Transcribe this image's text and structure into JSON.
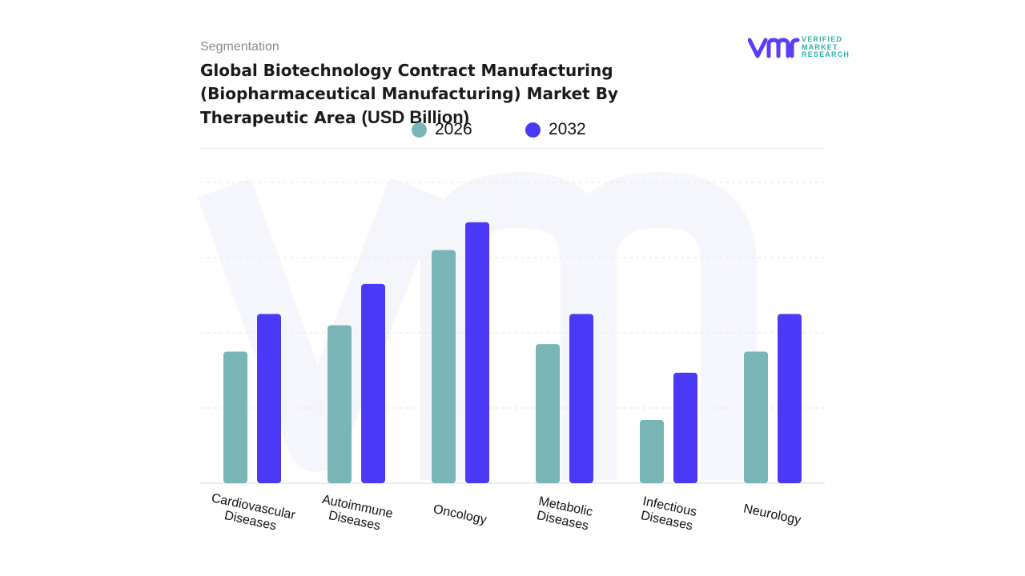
{
  "header": {
    "eyebrow": "Segmentation",
    "title_main": "Global Biotechnology Contract Manufacturing (Biopharmaceutical Manufacturing) Market By Therapeutic Area",
    "title_unit": "(USD Billion)"
  },
  "brand": {
    "logo_line1": "VERIFIED",
    "logo_line2": "MARKET",
    "logo_line3": "RESEARCH",
    "logo_color": "#5b3df5",
    "text_color": "#29b0a8"
  },
  "colors": {
    "series_2026": "#79b4b7",
    "series_2032": "#4a3af5",
    "grid": "#e6e6e6"
  },
  "chart_data": {
    "type": "bar",
    "categories": [
      "Cardiovascular Diseases",
      "Autoimmune Diseases",
      "Oncology",
      "Metabolic Diseases",
      "Infectious Diseases",
      "Neurology"
    ],
    "series": [
      {
        "name": "2026",
        "values": [
          17.5,
          21.0,
          31.0,
          18.5,
          8.4,
          17.5
        ]
      },
      {
        "name": "2032",
        "values": [
          22.5,
          26.5,
          34.7,
          22.5,
          14.7,
          22.5
        ]
      }
    ],
    "ylim": [
      0,
      40
    ],
    "grid": true,
    "legend_position": "top-center",
    "title": "Global Biotechnology Contract Manufacturing (Biopharmaceutical Manufacturing) Market By Therapeutic Area (USD Billion)",
    "xlabel": "",
    "ylabel": ""
  }
}
